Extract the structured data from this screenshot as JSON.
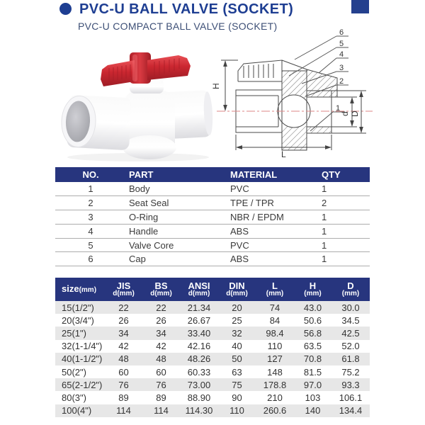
{
  "header": {
    "title": "PVC-U BALL VALVE (SOCKET)",
    "subtitle": "PVC-U COMPACT BALL VALVE (SOCKET)"
  },
  "diagram": {
    "callouts": [
      "6",
      "5",
      "4",
      "3",
      "2",
      "1"
    ],
    "dims": {
      "height": "H",
      "length": "L",
      "inner_diameter": "d",
      "outer_diameter": "D"
    }
  },
  "parts_table": {
    "headers": [
      "NO.",
      "PART",
      "MATERIAL",
      "QTY"
    ],
    "rows": [
      [
        "1",
        "Body",
        "PVC",
        "1"
      ],
      [
        "2",
        "Seat Seal",
        "TPE / TPR",
        "2"
      ],
      [
        "3",
        "O-Ring",
        "NBR / EPDM",
        "1"
      ],
      [
        "4",
        "Handle",
        "ABS",
        "1"
      ],
      [
        "5",
        "Valve Core",
        "PVC",
        "1"
      ],
      [
        "6",
        "Cap",
        "ABS",
        "1"
      ]
    ]
  },
  "size_table": {
    "headers": [
      {
        "line1": "size",
        "line2": "(mm)"
      },
      {
        "line1": "JIS",
        "line2": "d(mm)"
      },
      {
        "line1": "BS",
        "line2": "d(mm)"
      },
      {
        "line1": "ANSI",
        "line2": "d(mm)"
      },
      {
        "line1": "DIN",
        "line2": "d(mm)"
      },
      {
        "line1": "L",
        "line2": "(mm)"
      },
      {
        "line1": "H",
        "line2": "(mm)"
      },
      {
        "line1": "D",
        "line2": "(mm)"
      }
    ],
    "rows": [
      [
        "15(1/2\")",
        "22",
        "22",
        "21.34",
        "20",
        "74",
        "43.0",
        "30.0"
      ],
      [
        "20(3/4\")",
        "26",
        "26",
        "26.67",
        "25",
        "84",
        "50.6",
        "34.5"
      ],
      [
        "25(1\")",
        "34",
        "34",
        "33.40",
        "32",
        "98.4",
        "56.8",
        "42.5"
      ],
      [
        "32(1-1/4\")",
        "42",
        "42",
        "42.16",
        "40",
        "110",
        "63.5",
        "52.0"
      ],
      [
        "40(1-1/2\")",
        "48",
        "48",
        "48.26",
        "50",
        "127",
        "70.8",
        "61.8"
      ],
      [
        "50(2\")",
        "60",
        "60",
        "60.33",
        "63",
        "148",
        "81.5",
        "75.2"
      ],
      [
        "65(2-1/2\")",
        "76",
        "76",
        "73.00",
        "75",
        "178.8",
        "97.0",
        "93.3"
      ],
      [
        "80(3\")",
        "89",
        "89",
        "88.90",
        "90",
        "210",
        "103",
        "106.1"
      ],
      [
        "100(4\")",
        "114",
        "114",
        "114.30",
        "110",
        "260.6",
        "140",
        "134.4"
      ]
    ]
  },
  "colors": {
    "title_navy": "#1e3e92",
    "table_header_navy": "#27357e",
    "subtitle_navy": "#3d4f76",
    "row_alt_gray": "#e7e7e7",
    "handle_red": "#cb2730",
    "centerline_red": "#dd8585"
  }
}
